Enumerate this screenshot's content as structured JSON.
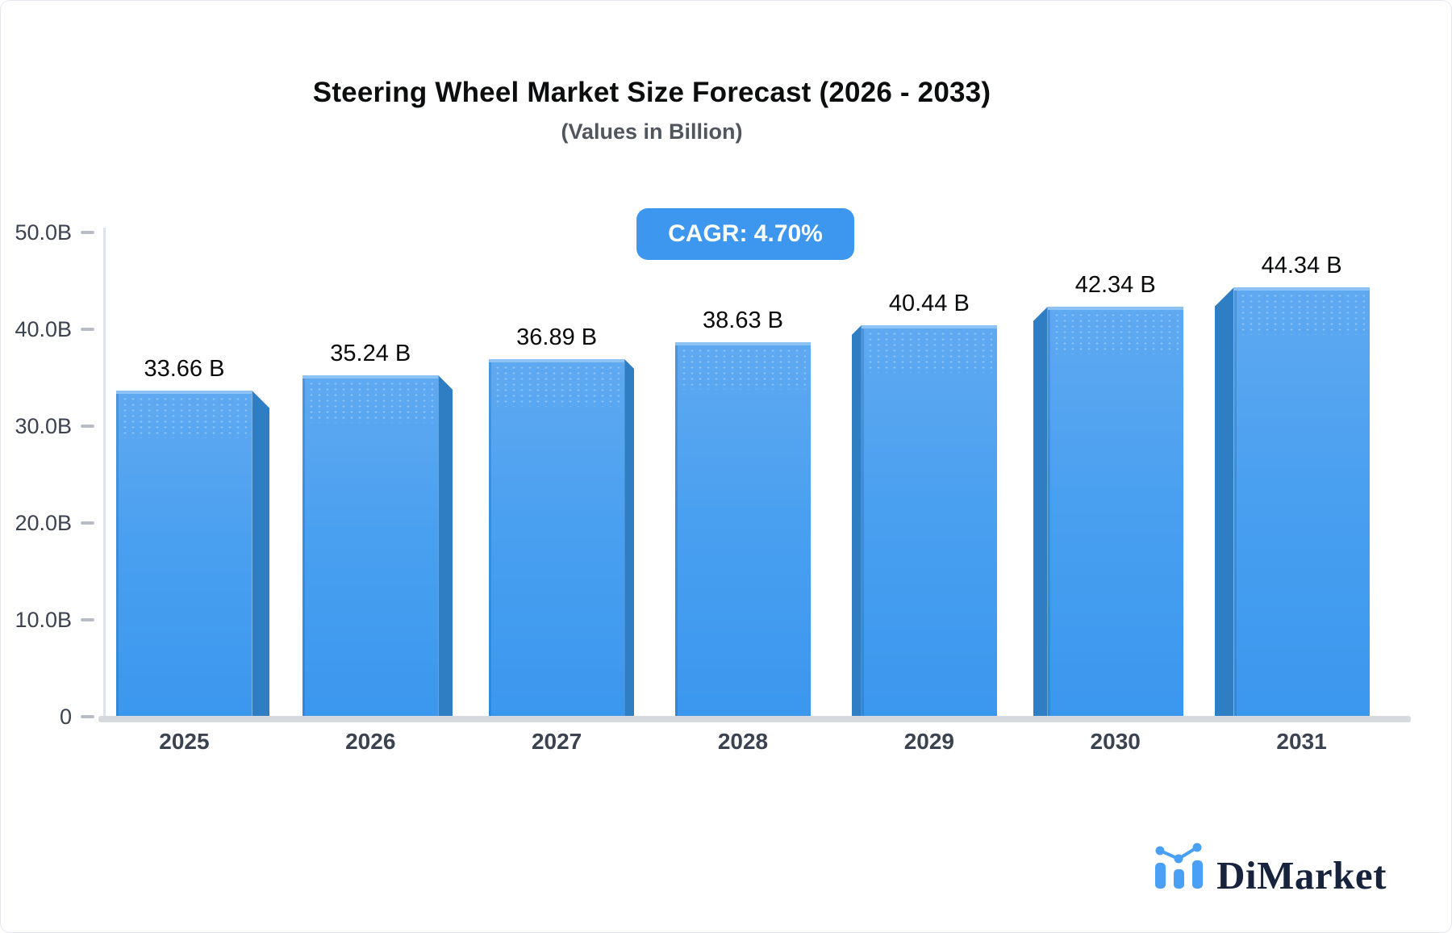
{
  "chart_data": {
    "type": "bar",
    "title": "Steering Wheel Market Size Forecast (2026 - 2033)",
    "subtitle": "(Values in Billion)",
    "cagr_badge": "CAGR: 4.70%",
    "categories": [
      "2025",
      "2026",
      "2027",
      "2028",
      "2029",
      "2030",
      "2031"
    ],
    "values": [
      33.66,
      35.24,
      36.89,
      38.63,
      40.44,
      42.34,
      44.34
    ],
    "value_labels": [
      "33.66 B",
      "35.24 B",
      "36.89 B",
      "38.63 B",
      "40.44 B",
      "42.34 B",
      "44.34 B"
    ],
    "yticks": [
      {
        "label": "50.0B",
        "value": 50
      },
      {
        "label": "40.0B",
        "value": 40
      },
      {
        "label": "30.0B",
        "value": 30
      },
      {
        "label": "20.0B",
        "value": 20
      },
      {
        "label": "10.0B",
        "value": 10
      },
      {
        "label": "0",
        "value": 0
      }
    ],
    "ylim": [
      0,
      50
    ],
    "xlabel": "",
    "ylabel": "",
    "grid": false,
    "legend": false,
    "bar_style": "3d-gradient-blue"
  },
  "logo": {
    "icon": "mini-bar-chart-icon",
    "text": "DiMarket"
  },
  "colors": {
    "accent": "#3e97ee",
    "bar-top": "#5fa9f1",
    "bar-mid": "#4aa0f0",
    "bar-bottom": "#3b97ee",
    "bar-side": "#2f7dc3",
    "axis-gray": "#d6dade",
    "logo-blue": "#4aa0f4",
    "logo-navy": "#17233d"
  }
}
